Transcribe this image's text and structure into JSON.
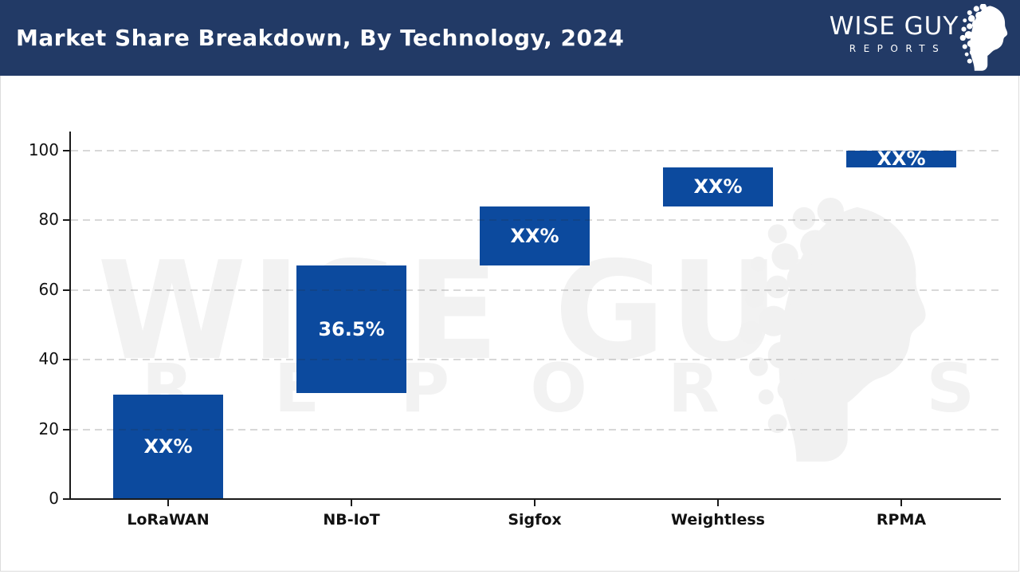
{
  "header": {
    "title": "Market Share Breakdown, By Technology, 2024",
    "logo_line1": "WISE GUY",
    "logo_line2": "REPORTS"
  },
  "chart_data": {
    "type": "bar",
    "variant": "floating-waterfall",
    "title": "Market Share Breakdown, By Technology, 2024",
    "categories": [
      "LoRaWAN",
      "NB-IoT",
      "Sigfox",
      "Weightless",
      "RPMA"
    ],
    "segments": [
      {
        "category": "LoRaWAN",
        "start": 0,
        "end": 30,
        "value": 30,
        "label": "XX%"
      },
      {
        "category": "NB-IoT",
        "start": 30.5,
        "end": 67,
        "value": 36.5,
        "label": "36.5%"
      },
      {
        "category": "Sigfox",
        "start": 67,
        "end": 84,
        "value": 17,
        "label": "XX%"
      },
      {
        "category": "Weightless",
        "start": 84,
        "end": 95,
        "value": 11,
        "label": "XX%"
      },
      {
        "category": "RPMA",
        "start": 95,
        "end": 100,
        "value": 5,
        "label": "XX%"
      }
    ],
    "xlabel": "",
    "ylabel": "",
    "yticks": [
      0,
      20,
      40,
      60,
      80,
      100
    ],
    "ylim": [
      0,
      105
    ],
    "grid": "horizontal-dashed",
    "legend_position": "none",
    "colors": {
      "header_bg": "#223a66",
      "bar": "#0c4a9e",
      "bar_label": "#ffffff",
      "axis": "#1a1a1a",
      "tick_label": "#111111",
      "grid": "#d9d9d9",
      "watermark": "#f2f2f2"
    },
    "watermark": {
      "line1": "WISE GUY",
      "line2": "R E P O R T S"
    }
  }
}
